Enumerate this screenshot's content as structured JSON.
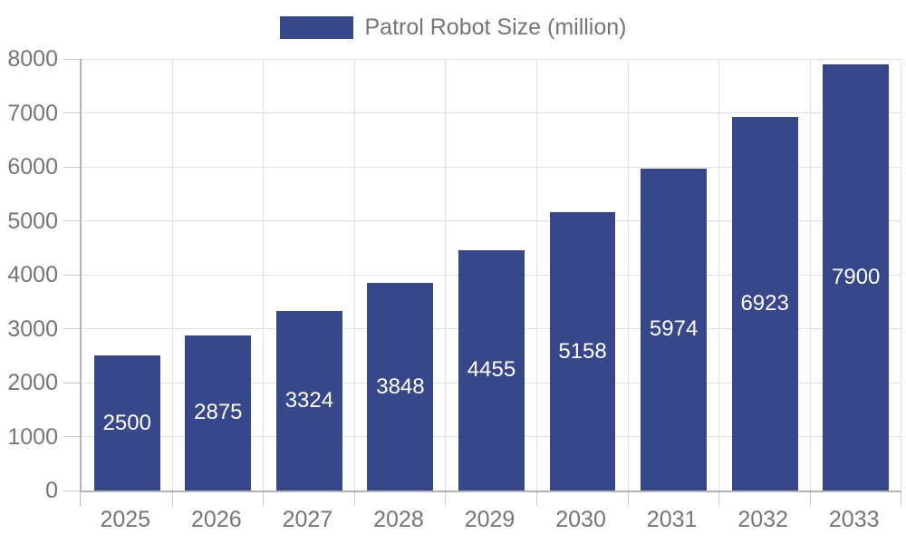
{
  "legend": {
    "label": "Patrol Robot Size (million)"
  },
  "colors": {
    "bar": "#36488a",
    "bar_label": "#ffffff",
    "grid": "#e2e2e2",
    "axis": "#b3b3b3",
    "tick": "#cccccc",
    "axis_text": "#767676",
    "legend_text": "#757575",
    "background": "#ffffff"
  },
  "chart_data": {
    "type": "bar",
    "title": "Patrol Robot Size (million)",
    "series": [
      {
        "name": "Patrol Robot Size (million)",
        "values": [
          2500,
          2875,
          3324,
          3848,
          4455,
          5158,
          5974,
          6923,
          7900
        ]
      }
    ],
    "categories": [
      "2025",
      "2026",
      "2027",
      "2028",
      "2029",
      "2030",
      "2031",
      "2032",
      "2033"
    ],
    "xlabel": "",
    "ylabel": "",
    "ylim": [
      0,
      8000
    ],
    "yticks": [
      0,
      1000,
      2000,
      3000,
      4000,
      5000,
      6000,
      7000,
      8000
    ],
    "grid": true,
    "vertical_grid": true,
    "legend_position": "top",
    "value_labels": "inside-center"
  }
}
